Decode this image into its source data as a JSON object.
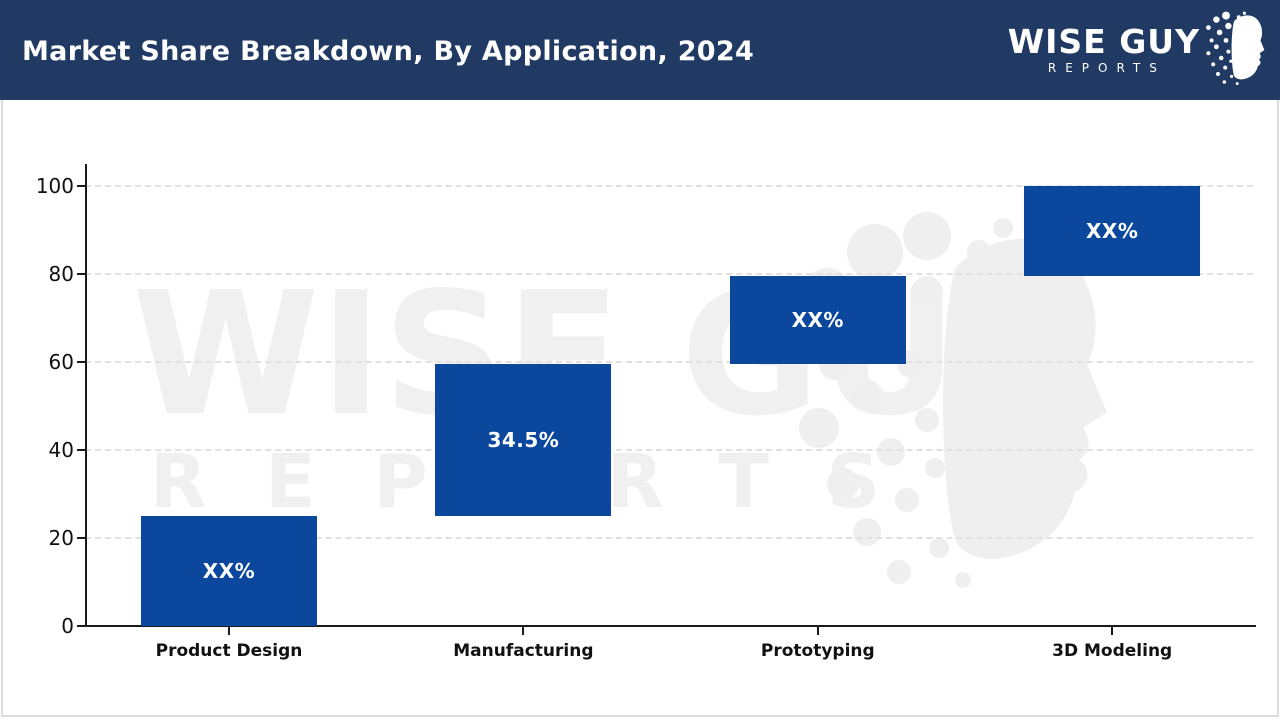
{
  "header": {
    "title": "Market Share Breakdown, By Application, 2024",
    "logo": {
      "line1": "WISE GUY",
      "line2": "REPORTS"
    }
  },
  "watermark": {
    "line1": "WISE GUY",
    "line2": "REPORTS"
  },
  "chart_data": {
    "type": "bar",
    "subtype": "waterfall",
    "title": "Market Share Breakdown, By Application, 2024",
    "categories": [
      "Product Design",
      "Manufacturing",
      "Prototyping",
      "3D Modeling"
    ],
    "segments": [
      {
        "start": 0,
        "end": 25,
        "label": "XX%"
      },
      {
        "start": 25,
        "end": 59.5,
        "label": "34.5%"
      },
      {
        "start": 59.5,
        "end": 79.5,
        "label": "XX%"
      },
      {
        "start": 79.5,
        "end": 100,
        "label": "XX%"
      }
    ],
    "xlabel": "",
    "ylabel": "",
    "ylim": [
      0,
      100
    ],
    "yticks": [
      0,
      20,
      40,
      60,
      80,
      100
    ],
    "grid": "horizontal-dashed",
    "legend": "none",
    "bar_color": "#0C479E",
    "value_label_color": "#ffffff"
  },
  "colors": {
    "header_bg": "#213A64",
    "header_text": "#ffffff",
    "bar": "#0C479E",
    "gridline": "#e1e1e1",
    "axis": "#1a1a1a",
    "watermark": "#f0f0f0",
    "frame": "#dadada"
  }
}
